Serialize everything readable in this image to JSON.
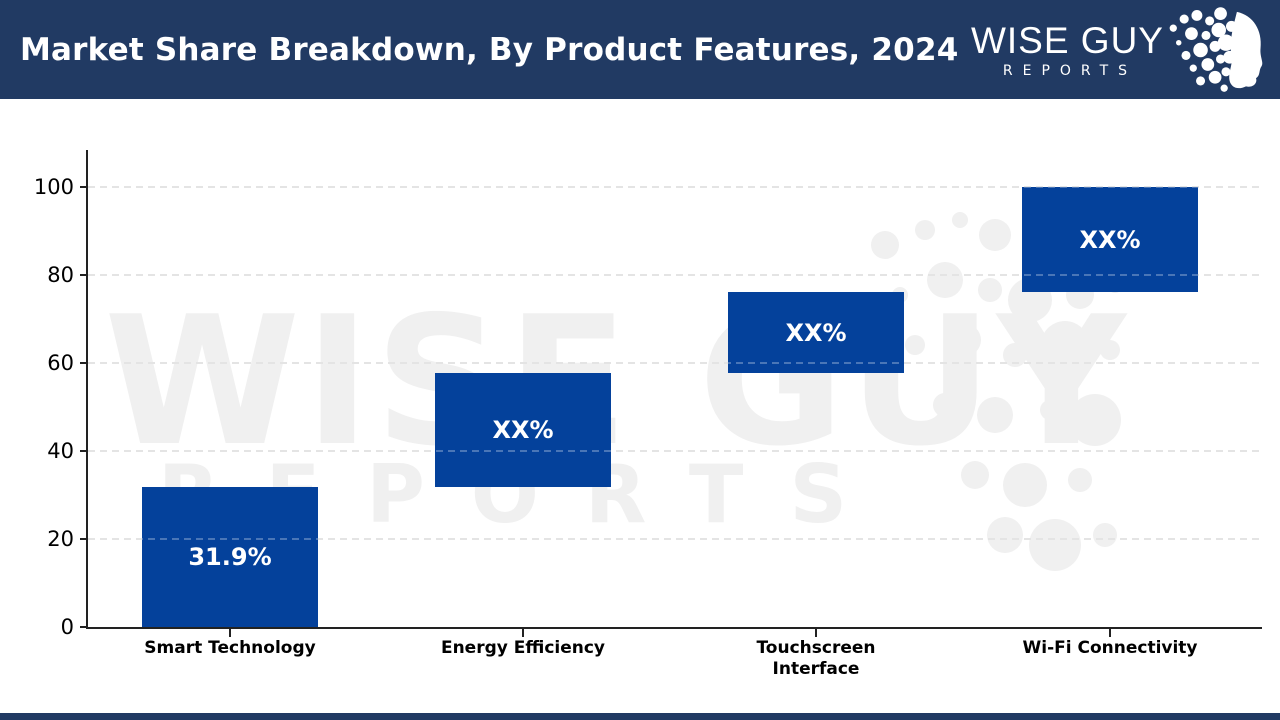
{
  "header": {
    "title": "Market Share Breakdown, By Product Features, 2024",
    "logo": {
      "line1": "WISE GUY",
      "line2": "REPORTS"
    }
  },
  "watermark": {
    "line1": "WISE GUY",
    "line2": "REPORTS"
  },
  "footer": {},
  "colors": {
    "header_bg": "#213a63",
    "footer_bg": "#213a63",
    "bar": "#04419b",
    "grid": "#d9d9d9",
    "axis": "#222222",
    "title_text": "#ffffff",
    "bar_label_text": "#ffffff",
    "tick_text": "#000000",
    "watermark": "#f0f0f0"
  },
  "chart_data": {
    "type": "bar",
    "subtype": "waterfall",
    "title": "Market Share Breakdown, By Product Features, 2024",
    "categories": [
      "Smart Technology",
      "Energy Efficiency",
      "Touchscreen Interface",
      "Wi-Fi Connectivity"
    ],
    "category_lines": [
      [
        "Smart Technology"
      ],
      [
        "Energy Efficiency"
      ],
      [
        "Touchscreen",
        "Interface"
      ],
      [
        "Wi-Fi Connectivity"
      ]
    ],
    "segments": [
      {
        "category": "Smart Technology",
        "start": 0,
        "end": 31.9,
        "label": "31.9%"
      },
      {
        "category": "Energy Efficiency",
        "start": 31.9,
        "end": 57.7,
        "label": "XX%"
      },
      {
        "category": "Touchscreen Interface",
        "start": 57.7,
        "end": 76.1,
        "label": "XX%"
      },
      {
        "category": "Wi-Fi Connectivity",
        "start": 76.1,
        "end": 100,
        "label": "XX%"
      }
    ],
    "yticks": [
      0,
      20,
      40,
      60,
      80,
      100
    ],
    "ylim": [
      0,
      100
    ],
    "xlabel": "",
    "ylabel": "",
    "grid": "horizontal-dashed",
    "legend": "none"
  }
}
